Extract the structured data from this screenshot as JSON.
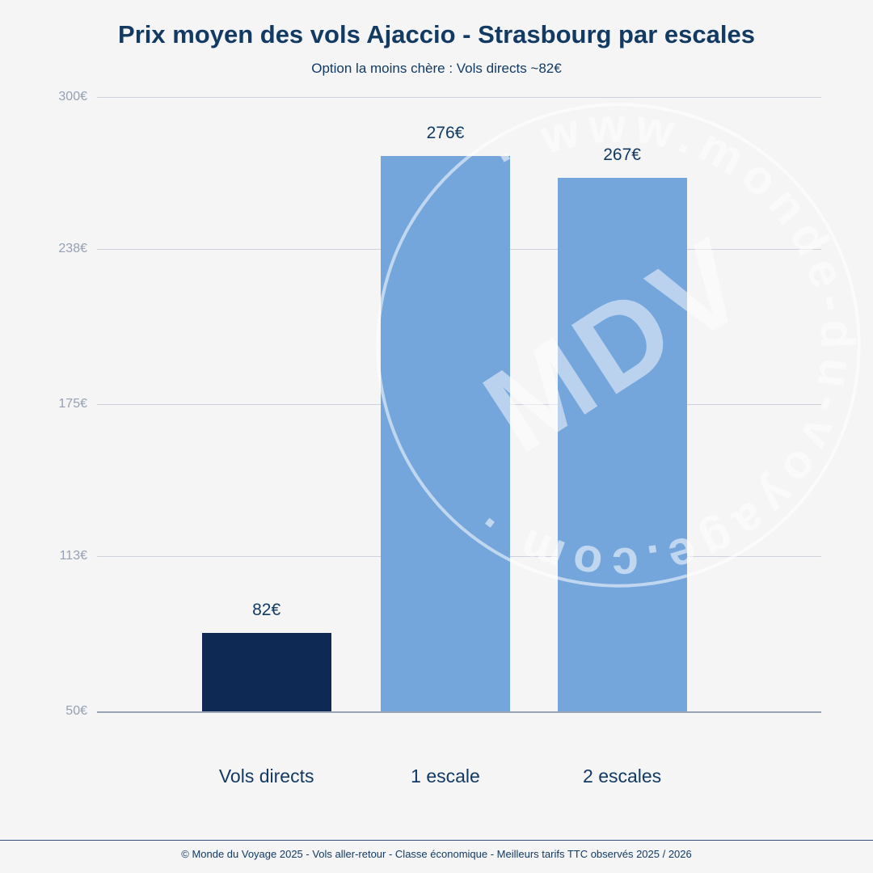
{
  "header": {
    "title": "Prix moyen des vols Ajaccio - Strasbourg par escales",
    "subtitle": "Option la moins chère : Vols directs ~82€"
  },
  "watermark": {
    "ring_text": "· www.monde-du-voyage.com ·",
    "center_text": "MDV"
  },
  "footer": {
    "text": "© Monde du Voyage 2025 - Vols aller-retour - Classe économique - Meilleurs tarifs TTC observés 2025 / 2026"
  },
  "chart_data": {
    "type": "bar",
    "title": "Prix moyen des vols Ajaccio - Strasbourg par escales",
    "subtitle": "Option la moins chère : Vols directs ~82€",
    "categories": [
      "Vols directs",
      "1 escale",
      "2 escales"
    ],
    "values": [
      82,
      276,
      267
    ],
    "value_labels": [
      "82€",
      "276€",
      "267€"
    ],
    "xlabel": "",
    "ylabel": "",
    "ylim": [
      50,
      300
    ],
    "yticks": [
      300,
      238,
      175,
      113,
      50
    ],
    "ytick_labels": [
      "300€",
      "238€",
      "175€",
      "113€",
      "50€"
    ],
    "grid": true,
    "legend": false,
    "bar_colors": [
      "#0e2a54",
      "#74a6dc",
      "#74a6dc"
    ],
    "colors": {
      "background": "#f5f5f6",
      "title": "#123a63",
      "axis_tick_label": "#96a0b4",
      "gridline": "#ccd1dc",
      "baseline": "#9aa3b4",
      "dark_bar": "#0e2a54",
      "light_bar": "#74a6dc",
      "watermark": "#ffffff"
    }
  }
}
